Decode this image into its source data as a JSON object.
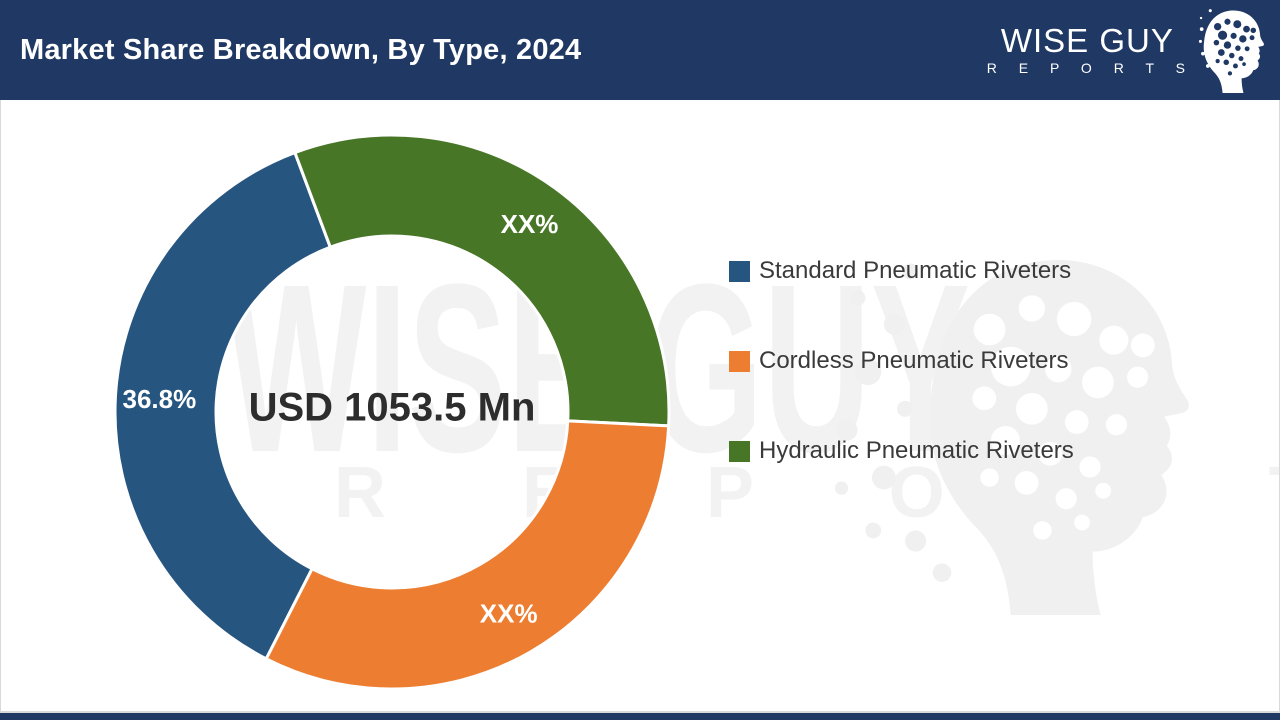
{
  "header": {
    "title": "Market Share Breakdown, By Type, 2024",
    "bg_color": "#1f3864",
    "logo": {
      "line1": "WISE GUY",
      "line2": "R E P O R T S",
      "icon": "dotted-head-profile"
    }
  },
  "watermark": {
    "line1": "WISE GUY",
    "line2": "R E P O R T S",
    "icon": "dotted-head-profile",
    "color": "#f2f2f2"
  },
  "chart_data": {
    "type": "pie",
    "subtype": "donut",
    "title": "Market Share Breakdown, By Type, 2024",
    "center_label": "USD 1053.5 Mn",
    "start_angle_deg_clockwise_from_top": 207,
    "legend_position": "right",
    "slices": [
      {
        "name": "Standard Pneumatic Riveters",
        "display_label": "36.8%",
        "pct": 36.8,
        "color": "#265580"
      },
      {
        "name": "Hydraulic Pneumatic Riveters",
        "display_label": "XX%",
        "pct": 31.5,
        "color": "#477627"
      },
      {
        "name": "Cordless Pneumatic Riveters",
        "display_label": "XX%",
        "pct": 31.7,
        "color": "#ed7d31"
      }
    ]
  },
  "legend": {
    "items": [
      {
        "label": "Standard Pneumatic Riveters",
        "color": "#265580"
      },
      {
        "label": "Cordless Pneumatic Riveters",
        "color": "#ed7d31"
      },
      {
        "label": "Hydraulic Pneumatic Riveters",
        "color": "#477627"
      }
    ]
  },
  "colors": {
    "navy_bar": "#1f3864",
    "border_gray": "#d9d9d9",
    "center_text": "#2d2d2d",
    "legend_text": "#3a3a3a"
  }
}
